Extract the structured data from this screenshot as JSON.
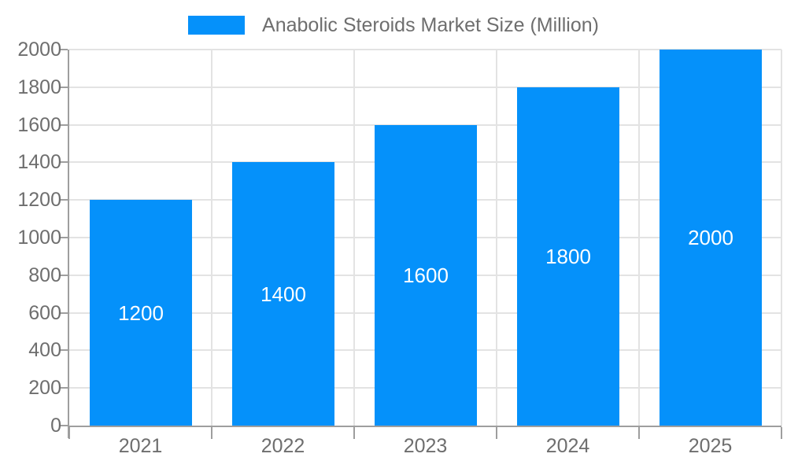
{
  "colors": {
    "bar": "#0591fa",
    "axis": "#9e9e9e",
    "grid": "#e3e3e3",
    "tick_text": "#6e6e6e",
    "bar_label_text": "#ffffff",
    "background": "#ffffff"
  },
  "legend": {
    "label": "Anabolic Steroids Market Size (Million)",
    "swatch_color": "#0591fa"
  },
  "chart_data": {
    "type": "bar",
    "title": "Anabolic Steroids Market Size (Million)",
    "categories": [
      "2021",
      "2022",
      "2023",
      "2024",
      "2025"
    ],
    "series": [
      {
        "name": "Anabolic Steroids Market Size (Million)",
        "values": [
          1200,
          1400,
          1600,
          1800,
          2000
        ],
        "color": "#0591fa"
      }
    ],
    "data_labels": [
      "1200",
      "1400",
      "1600",
      "1800",
      "2000"
    ],
    "xlabel": "",
    "ylabel": "",
    "ylim": [
      0,
      2000
    ],
    "ytick_step": 200,
    "ytick_labels": [
      "0",
      "200",
      "400",
      "600",
      "800",
      "1000",
      "1200",
      "1400",
      "1600",
      "1800",
      "2000"
    ],
    "grid": true,
    "legend_position": "top-center",
    "bar_label_position": "inside-center"
  }
}
